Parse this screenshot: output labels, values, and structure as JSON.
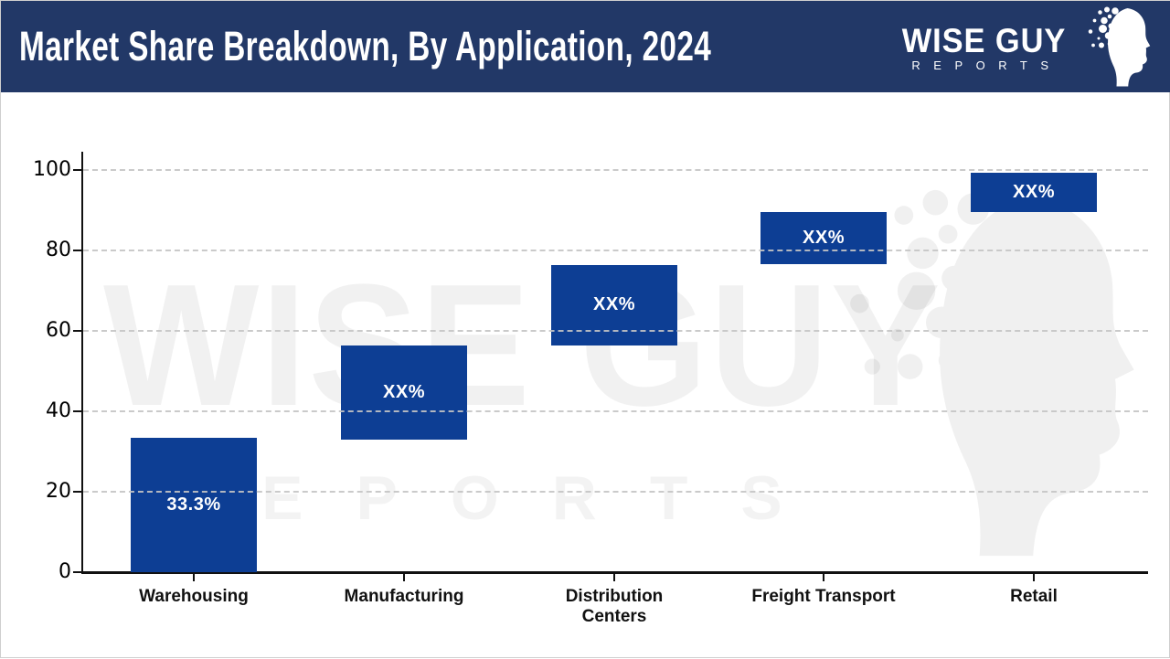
{
  "header": {
    "title": "Market Share Breakdown, By Application, 2024",
    "background_color": "#223867",
    "logo": {
      "line1": "WISE GUY",
      "line2": "REPORTS"
    }
  },
  "watermark": {
    "line1": "WISE GUY",
    "line2": "REPORTS"
  },
  "chart_data": {
    "type": "bar",
    "subtype": "waterfall",
    "title": "Market Share Breakdown, By Application, 2024",
    "categories": [
      "Warehousing",
      "Manufacturing",
      "Distribution\nCenters",
      "Freight Transport",
      "Retail"
    ],
    "segments": [
      {
        "category": "Warehousing",
        "start": 0,
        "end": 33.3,
        "label": "33.3%"
      },
      {
        "category": "Manufacturing",
        "start": 33.0,
        "end": 56.4,
        "label": "XX%"
      },
      {
        "category": "Distribution Centers",
        "start": 56.4,
        "end": 76.4,
        "label": "XX%"
      },
      {
        "category": "Freight Transport",
        "start": 76.6,
        "end": 89.6,
        "label": "XX%"
      },
      {
        "category": "Retail",
        "start": 89.6,
        "end": 99.3,
        "label": "XX%"
      }
    ],
    "y_ticks": [
      0,
      20,
      40,
      60,
      80,
      100
    ],
    "ylim": [
      0,
      105
    ],
    "xlabel": "",
    "ylabel": "",
    "grid": "horizontal-dashed",
    "legend": "none",
    "bar_color": "#0d3e94",
    "bar_label_color": "#ffffff"
  }
}
